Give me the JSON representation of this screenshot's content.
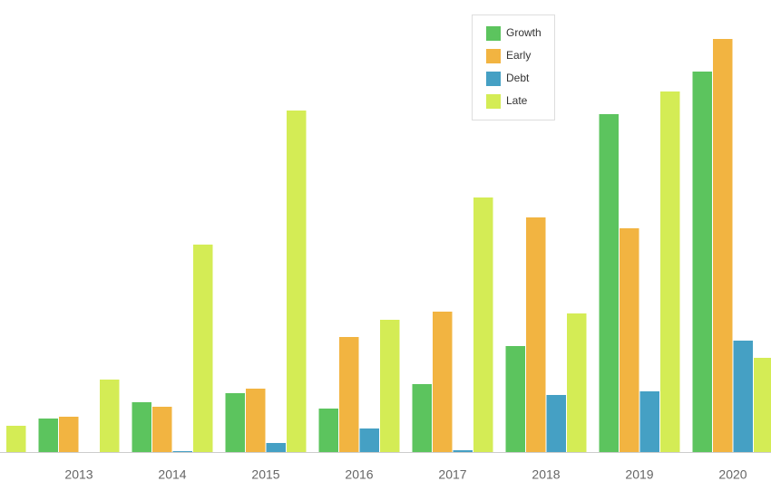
{
  "chart_data": {
    "type": "bar",
    "categories": [
      null,
      "2013",
      "2014",
      "2015",
      "2016",
      "2017",
      "2018",
      "2019",
      "2020"
    ],
    "series": [
      {
        "name": "Growth",
        "color": "#5cc45e",
        "values": [
          null,
          37,
          55,
          65,
          48,
          75,
          117,
          373,
          420
        ]
      },
      {
        "name": "Early",
        "color": "#f2b441",
        "values": [
          null,
          39,
          50,
          70,
          127,
          155,
          259,
          247,
          456
        ]
      },
      {
        "name": "Debt",
        "color": "#45a0c4",
        "values": [
          null,
          0,
          1,
          10,
          26,
          2,
          63,
          67,
          123
        ]
      },
      {
        "name": "Late",
        "color": "#d4ec55",
        "values": [
          29,
          80,
          229,
          377,
          146,
          281,
          153,
          398,
          104
        ]
      }
    ],
    "ylim": [
      0,
      500
    ],
    "legend": "top-right"
  }
}
